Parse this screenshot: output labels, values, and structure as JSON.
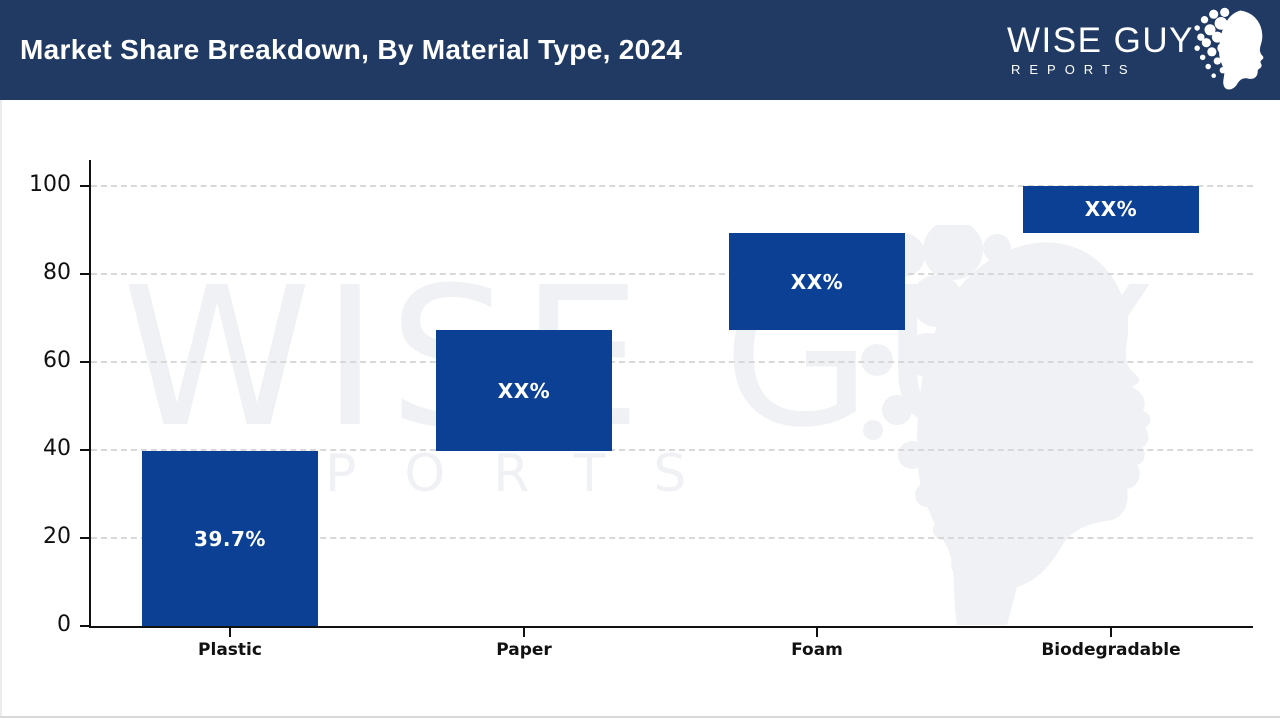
{
  "header": {
    "title": "Market Share Breakdown, By Material Type, 2024",
    "logo": {
      "brand": "WISE GUY",
      "sub": "REPORTS"
    }
  },
  "watermark": {
    "line1": "WISE GUY",
    "line2": "REPORTS"
  },
  "chart_data": {
    "type": "bar",
    "subtype": "waterfall",
    "title": "Market Share Breakdown, By Material Type, 2024",
    "categories": [
      "Plastic",
      "Paper",
      "Foam",
      "Biodegradable"
    ],
    "segments": [
      {
        "category": "Plastic",
        "start": 0,
        "end": 39.7,
        "label": "39.7%"
      },
      {
        "category": "Paper",
        "start": 39.7,
        "end": 67.2,
        "label": "XX%"
      },
      {
        "category": "Foam",
        "start": 67.2,
        "end": 89.2,
        "label": "XX%"
      },
      {
        "category": "Biodegradable",
        "start": 89.2,
        "end": 100,
        "label": "XX%"
      }
    ],
    "xlabel": "",
    "ylabel": "",
    "yticks": [
      0,
      20,
      40,
      60,
      80,
      100
    ],
    "ylim": [
      0,
      105.8
    ],
    "grid": "dashed-horizontal",
    "legend": "none",
    "bar_color": "#0c4095",
    "bar_label_color": "#ffffff"
  },
  "colors": {
    "header_bg": "#203a64",
    "axis": "#111111",
    "gridline": "#d8d8d8",
    "watermark": "#f0f1f4",
    "background": "#ffffff"
  }
}
